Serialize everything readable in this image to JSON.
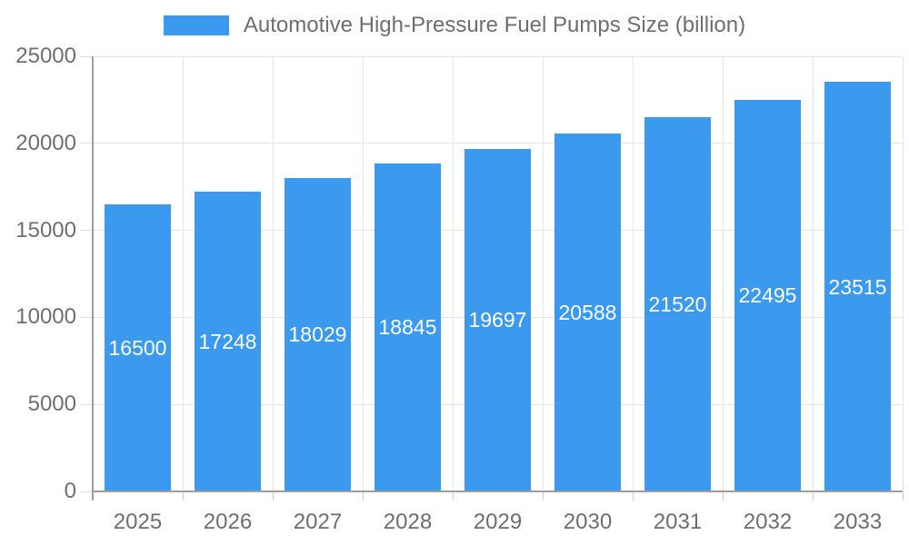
{
  "legend": {
    "label": "Automotive High-Pressure Fuel Pumps Size (billion)",
    "swatch_color": "#3b99ee"
  },
  "chart_data": {
    "type": "bar",
    "title": "Automotive High-Pressure Fuel Pumps Size (billion)",
    "categories": [
      "2025",
      "2026",
      "2027",
      "2028",
      "2029",
      "2030",
      "2031",
      "2032",
      "2033"
    ],
    "values": [
      16500,
      17248,
      18029,
      18845,
      19697,
      20588,
      21520,
      22495,
      23515
    ],
    "xlabel": "",
    "ylabel": "",
    "ylim": [
      0,
      25000
    ],
    "yticks": [
      0,
      5000,
      10000,
      15000,
      20000,
      25000
    ],
    "grid": true,
    "legend_position": "top",
    "colors": {
      "bar": "#3b99ee",
      "value_label": "#ffffff",
      "axis_text": "#6e6e6e",
      "gridline": "#e6e6e6",
      "axis_line": "#9e9e9e",
      "tick": "#cccccc",
      "background": "#ffffff"
    }
  }
}
